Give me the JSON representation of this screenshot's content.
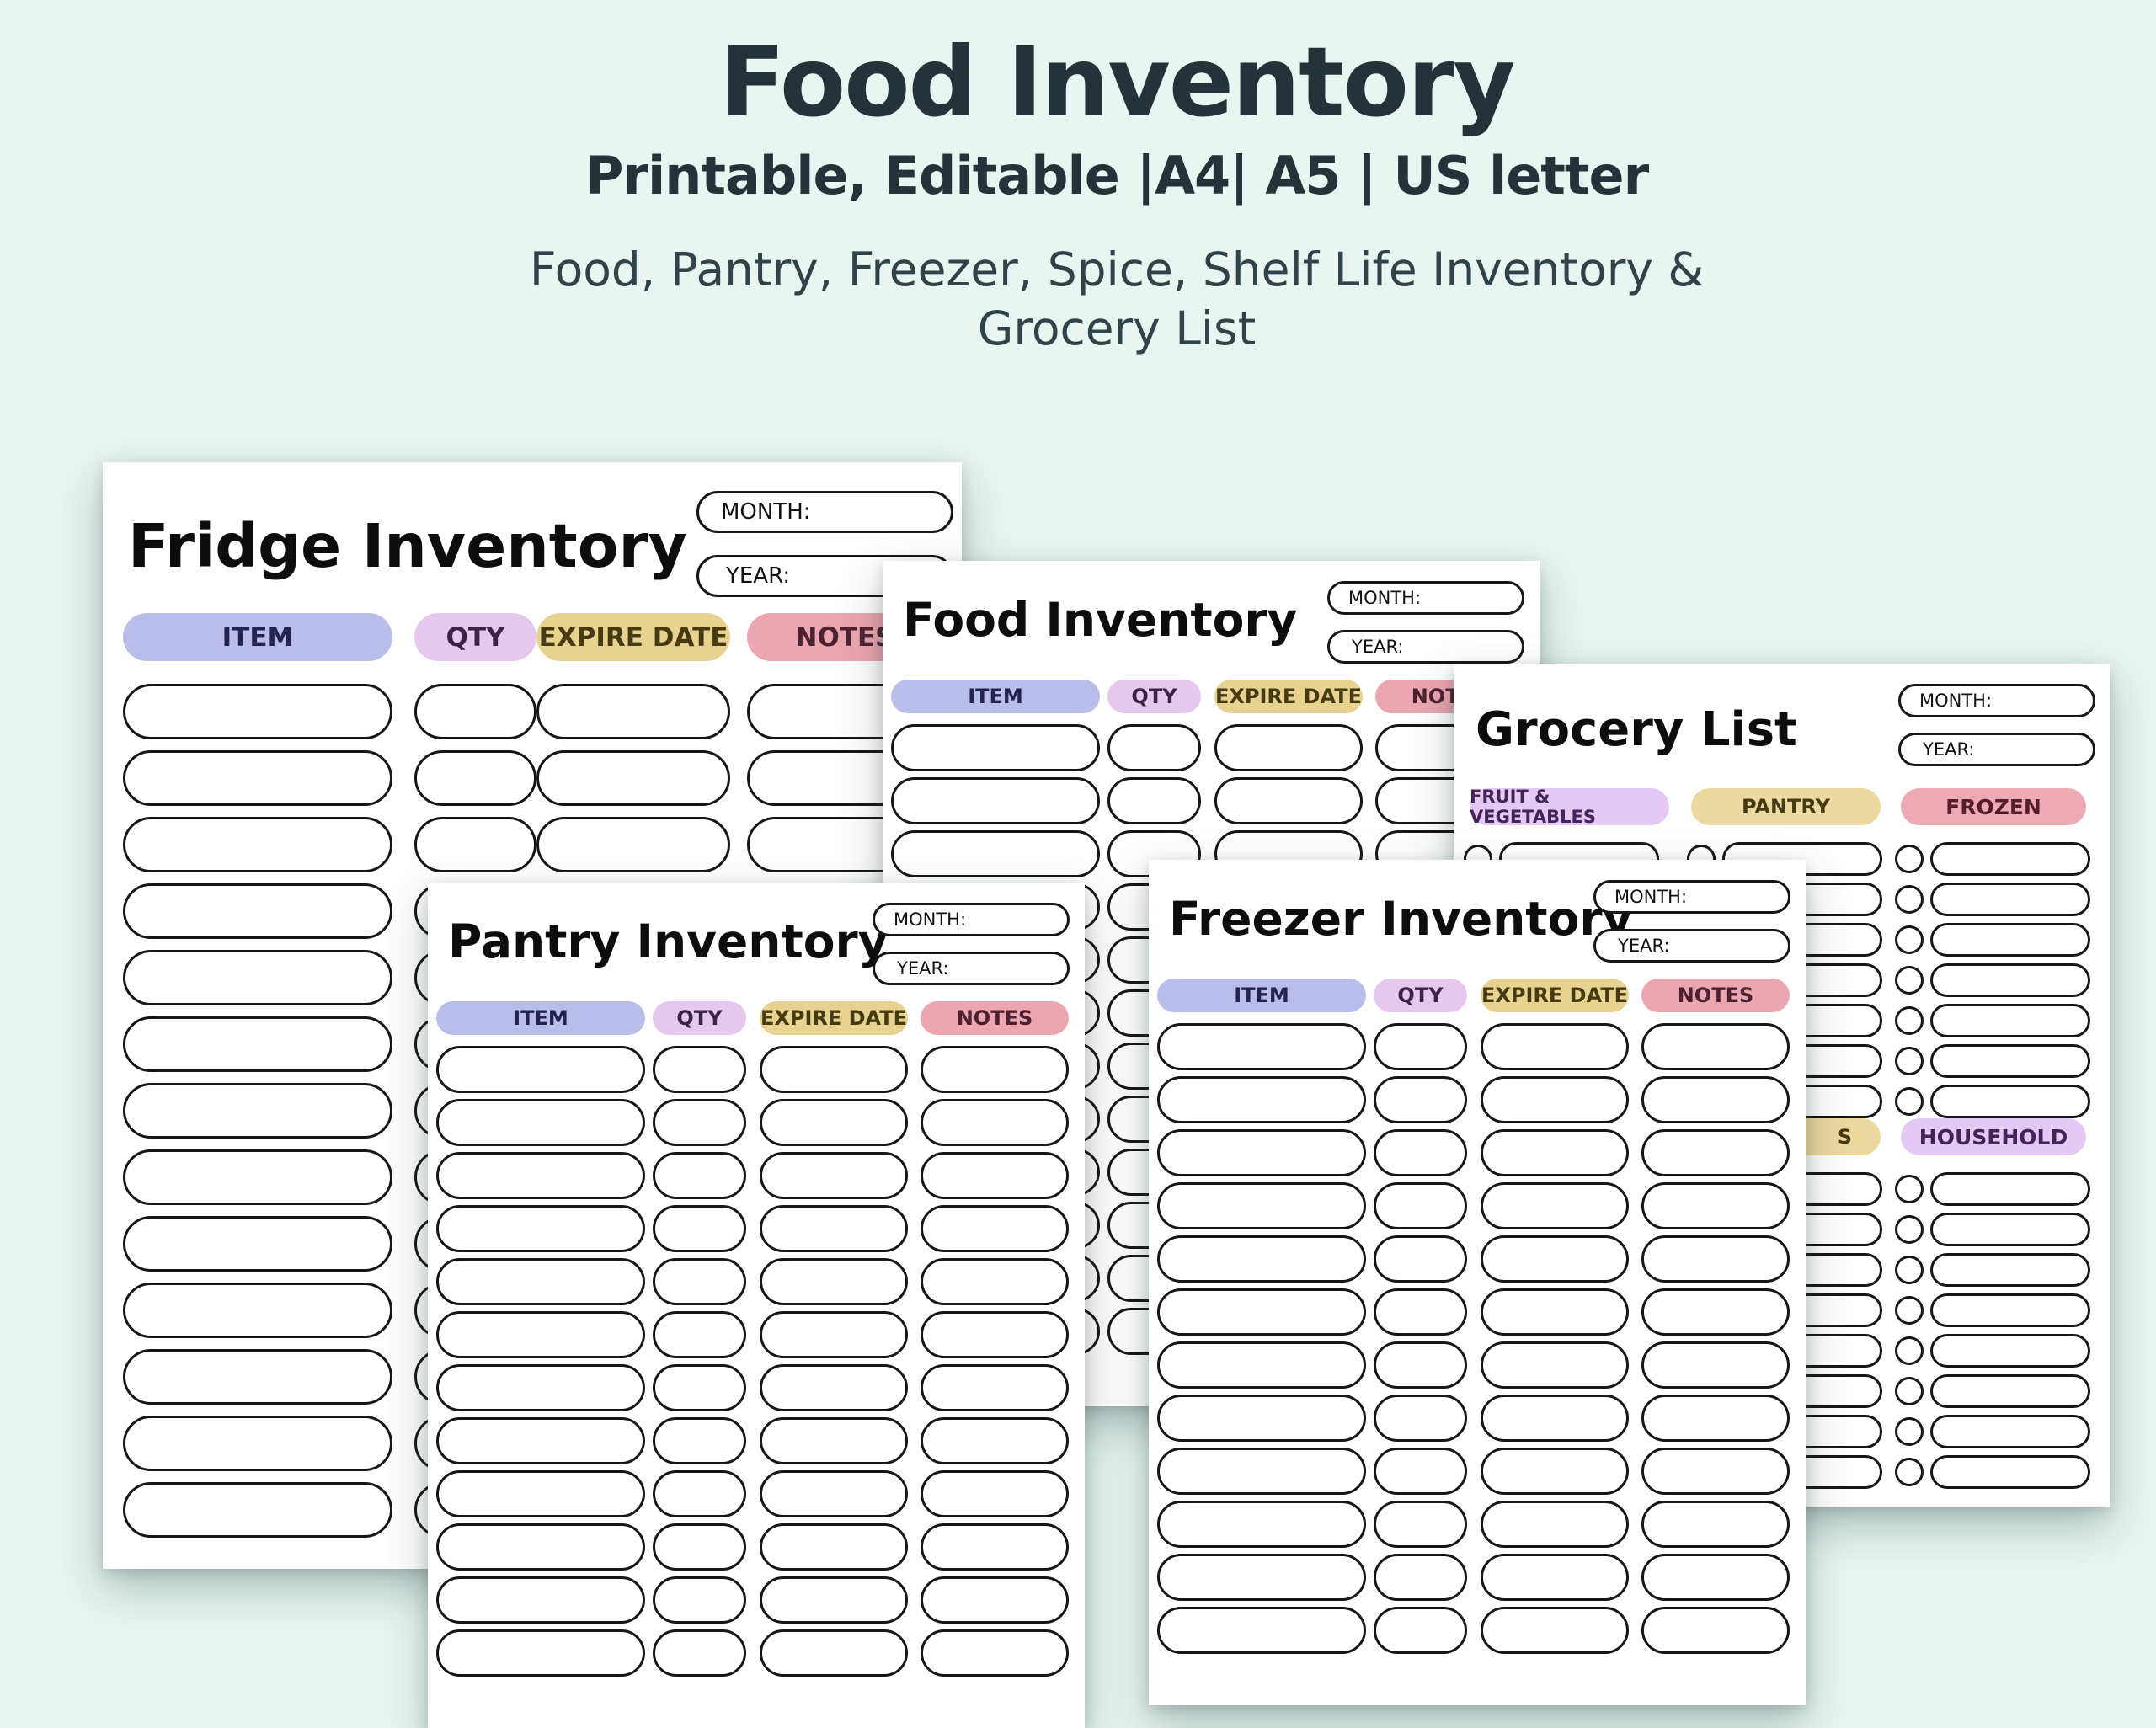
{
  "hero": {
    "title": "Food Inventory",
    "subtitle": "Printable, Editable |A4| A5 | US letter",
    "description_line1": "Food, Pantry, Freezer, Spice, Shelf Life Inventory &",
    "description_line2": "Grocery List"
  },
  "field_labels": {
    "month": "MONTH:",
    "year": "YEAR:"
  },
  "columns": {
    "item": "ITEM",
    "qty": "QTY",
    "expire": "EXPIRE DATE",
    "notes": "NOTES"
  },
  "sheets": {
    "fridge": {
      "title": "Fridge Inventory",
      "rows": 13
    },
    "food": {
      "title": "Food Inventory",
      "rows": 12
    },
    "pantry": {
      "title": "Pantry Inventory",
      "rows": 12
    },
    "freezer": {
      "title": "Freezer Inventory",
      "rows": 12
    },
    "grocery": {
      "title": "Grocery List",
      "top_categories": {
        "left": "FRUIT & VEGETABLES",
        "middle": "PANTRY",
        "right": "FROZEN"
      },
      "bottom_categories": {
        "middle_visible_fragment": "S",
        "right": "HOUSEHOLD"
      },
      "top_rows": 7,
      "bottom_rows": 8
    }
  },
  "colors": {
    "background": "#e8f5f1",
    "paper": "#ffffff",
    "heading": "#26323a",
    "periwinkle": "#b9bde9",
    "lilac": "#e6c8ef",
    "khaki": "#e7d28f",
    "rose": "#eca6b1",
    "lavender": "#e3c9f3",
    "khaki_light": "#ecd9a0",
    "rose_light": "#efa9b5"
  }
}
